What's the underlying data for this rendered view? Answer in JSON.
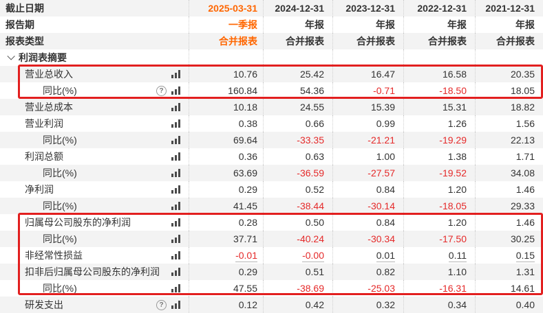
{
  "table": {
    "header_rows": [
      {
        "label": "截止日期",
        "values": [
          "2025-03-31",
          "2024-12-31",
          "2023-12-31",
          "2022-12-31",
          "2021-12-31"
        ]
      },
      {
        "label": "报告期",
        "values": [
          "一季报",
          "年报",
          "年报",
          "年报",
          "年报"
        ]
      },
      {
        "label": "报表类型",
        "values": [
          "合并报表",
          "合并报表",
          "合并报表",
          "合并报表",
          "合并报表"
        ]
      }
    ],
    "section_header": {
      "label": "利润表摘要"
    },
    "metric_rows": [
      {
        "label": "营业总收入",
        "indent": false,
        "help": false,
        "chart": true,
        "underline": false,
        "values": [
          "10.76",
          "25.42",
          "16.47",
          "16.58",
          "20.35"
        ]
      },
      {
        "label": "同比(%)",
        "indent": true,
        "help": true,
        "chart": true,
        "underline": false,
        "values": [
          "160.84",
          "54.36",
          "-0.71",
          "-18.50",
          "18.05"
        ]
      },
      {
        "label": "营业总成本",
        "indent": false,
        "help": false,
        "chart": true,
        "underline": false,
        "values": [
          "10.18",
          "24.55",
          "15.39",
          "15.31",
          "18.82"
        ]
      },
      {
        "label": "营业利润",
        "indent": false,
        "help": false,
        "chart": true,
        "underline": false,
        "values": [
          "0.38",
          "0.66",
          "0.99",
          "1.26",
          "1.56"
        ]
      },
      {
        "label": "同比(%)",
        "indent": true,
        "help": false,
        "chart": true,
        "underline": false,
        "values": [
          "69.64",
          "-33.35",
          "-21.21",
          "-19.29",
          "22.13"
        ]
      },
      {
        "label": "利润总额",
        "indent": false,
        "help": false,
        "chart": true,
        "underline": false,
        "values": [
          "0.36",
          "0.63",
          "1.00",
          "1.38",
          "1.71"
        ]
      },
      {
        "label": "同比(%)",
        "indent": true,
        "help": false,
        "chart": true,
        "underline": false,
        "values": [
          "63.69",
          "-36.59",
          "-27.57",
          "-19.52",
          "34.08"
        ]
      },
      {
        "label": "净利润",
        "indent": false,
        "help": false,
        "chart": true,
        "underline": false,
        "values": [
          "0.29",
          "0.52",
          "0.84",
          "1.20",
          "1.46"
        ]
      },
      {
        "label": "同比(%)",
        "indent": true,
        "help": false,
        "chart": true,
        "underline": false,
        "values": [
          "41.45",
          "-38.44",
          "-30.14",
          "-18.05",
          "29.33"
        ]
      },
      {
        "label": "归属母公司股东的净利润",
        "indent": false,
        "help": false,
        "chart": true,
        "underline": false,
        "values": [
          "0.28",
          "0.50",
          "0.84",
          "1.20",
          "1.46"
        ]
      },
      {
        "label": "同比(%)",
        "indent": true,
        "help": false,
        "chart": true,
        "underline": false,
        "values": [
          "37.71",
          "-40.24",
          "-30.34",
          "-17.50",
          "30.25"
        ]
      },
      {
        "label": "非经常性损益",
        "indent": false,
        "help": false,
        "chart": true,
        "underline": true,
        "values": [
          "-0.01",
          "-0.00",
          "0.01",
          "0.11",
          "0.15"
        ]
      },
      {
        "label": "扣非后归属母公司股东的净利润",
        "indent": false,
        "help": false,
        "chart": true,
        "underline": false,
        "values": [
          "0.29",
          "0.51",
          "0.82",
          "1.10",
          "1.31"
        ]
      },
      {
        "label": "同比(%)",
        "indent": true,
        "help": false,
        "chart": true,
        "underline": false,
        "values": [
          "47.55",
          "-38.69",
          "-25.03",
          "-16.31",
          "14.61"
        ]
      },
      {
        "label": "研发支出",
        "indent": false,
        "help": true,
        "chart": true,
        "underline": false,
        "values": [
          "0.12",
          "0.42",
          "0.32",
          "0.34",
          "0.40"
        ]
      }
    ],
    "colors": {
      "accent_orange": "#ff6600",
      "negative_red": "#e52929",
      "annotation_red": "#e21f1f",
      "stripe_gray": "#f3f3f3"
    }
  }
}
